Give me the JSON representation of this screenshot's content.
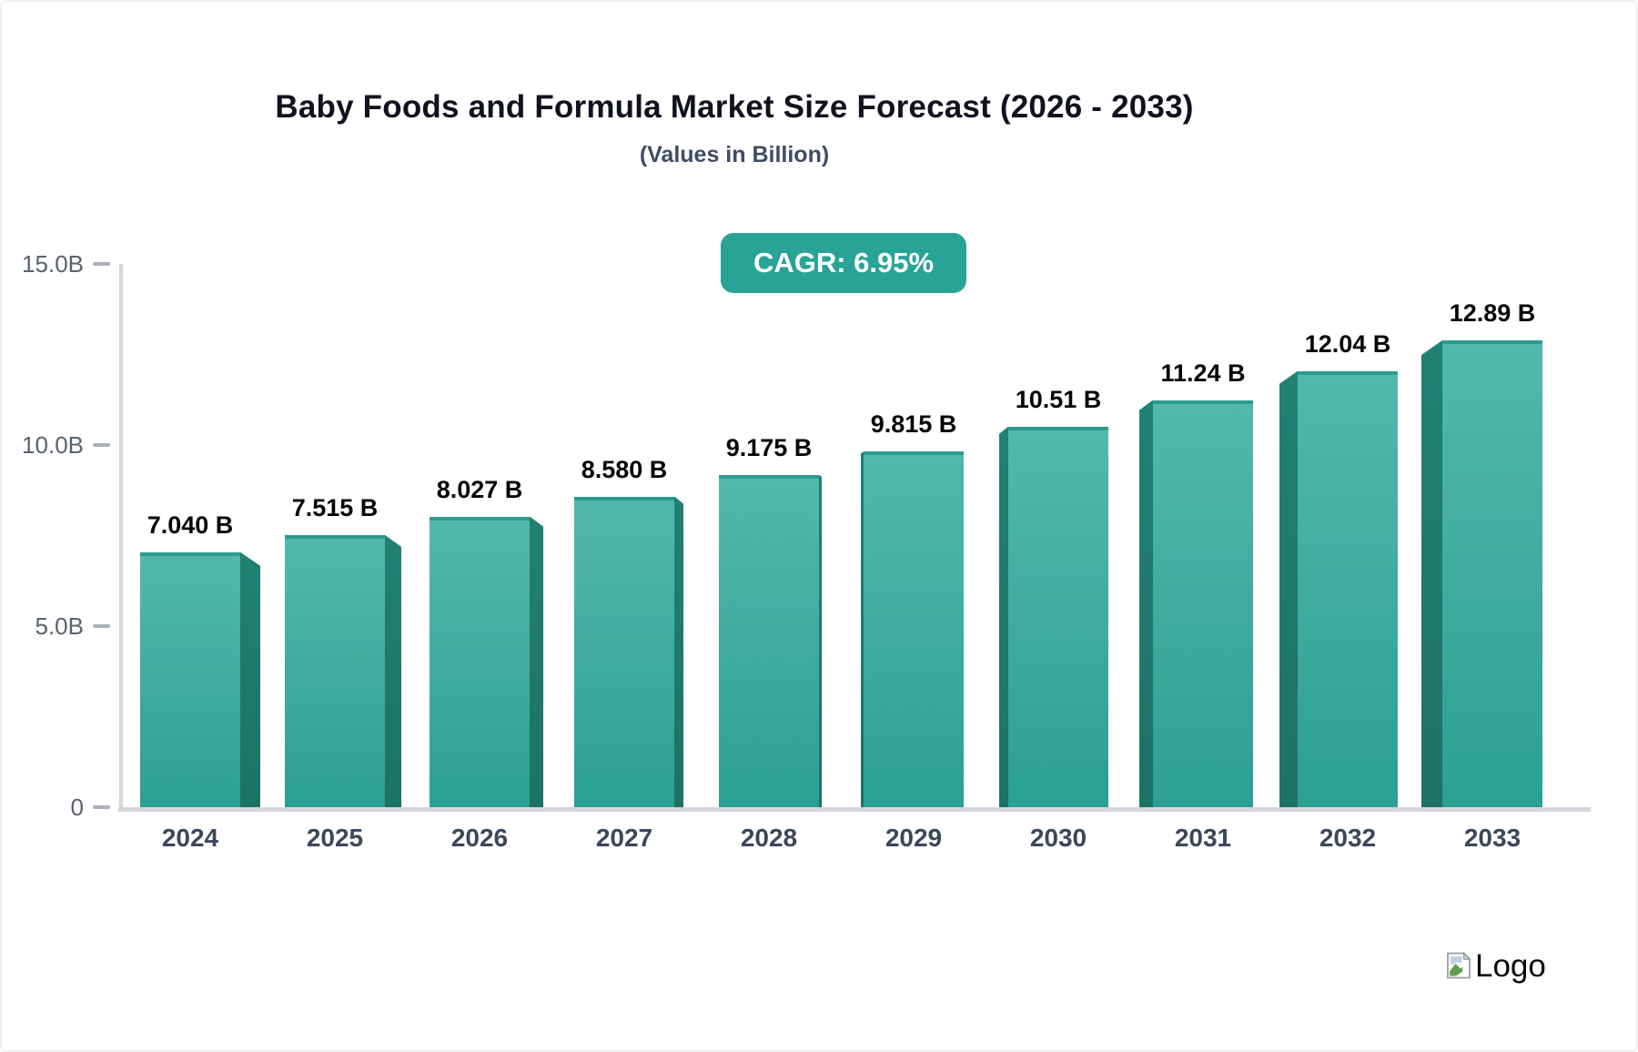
{
  "title": "Baby Foods and Formula Market Size Forecast (2026 - 2033)",
  "subtitle": "(Values in Billion)",
  "badge": {
    "label": "CAGR: 6.95%",
    "bg_color": "#2aa397"
  },
  "logo": {
    "alt_text": "Logo"
  },
  "chart_data": {
    "type": "bar",
    "title": "Baby Foods and Formula Market Size Forecast (2026 - 2033)",
    "subtitle": "(Values in Billion)",
    "categories": [
      "2024",
      "2025",
      "2026",
      "2027",
      "2028",
      "2029",
      "2030",
      "2031",
      "2032",
      "2033"
    ],
    "values": [
      7.04,
      7.515,
      8.027,
      8.58,
      9.175,
      9.815,
      10.51,
      11.24,
      12.04,
      12.89
    ],
    "value_labels": [
      "7.040 B",
      "7.515 B",
      "8.027 B",
      "8.580 B",
      "9.175 B",
      "9.815 B",
      "10.51 B",
      "11.24 B",
      "12.04 B",
      "12.89 B"
    ],
    "unit": "Billion",
    "ylim": [
      0,
      15
    ],
    "y_ticks": [
      {
        "value": 0,
        "label": "0"
      },
      {
        "value": 5,
        "label": "5.0B"
      },
      {
        "value": 10,
        "label": "10.0B"
      },
      {
        "value": 15,
        "label": "15.0B"
      }
    ],
    "grid": false,
    "legend": false,
    "colors": {
      "bar_top": "#53b8ab",
      "bar_bottom": "#2ba093",
      "bar_top_edge": "#2d9b8d",
      "bar_side": "#1f7a6e",
      "axis": "#d4d7dc",
      "tick_dash": "#a9b0ba",
      "tick_text": "#58636f",
      "category_text": "#3b475b",
      "accent": "#2aa397"
    }
  }
}
